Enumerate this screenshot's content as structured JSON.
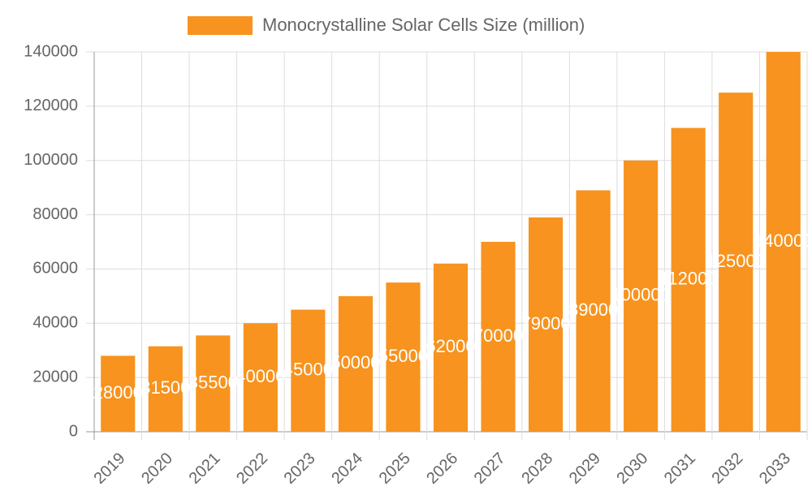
{
  "chart_data": {
    "type": "bar",
    "series": [
      {
        "name": "Monocrystalline Solar Cells Size (million)",
        "color": "#f7931e",
        "values": [
          28000,
          31500,
          35500,
          40000,
          45000,
          50000,
          55000,
          62000,
          70000,
          79000,
          89000,
          100000,
          112000,
          125000,
          140000
        ]
      }
    ],
    "categories": [
      "2019",
      "2020",
      "2021",
      "2022",
      "2023",
      "2024",
      "2025",
      "2026",
      "2027",
      "2028",
      "2029",
      "2030",
      "2031",
      "2032",
      "2033"
    ],
    "ylim": [
      0,
      140000
    ],
    "yticks": [
      0,
      20000,
      40000,
      60000,
      80000,
      100000,
      120000,
      140000
    ],
    "grid": true
  }
}
